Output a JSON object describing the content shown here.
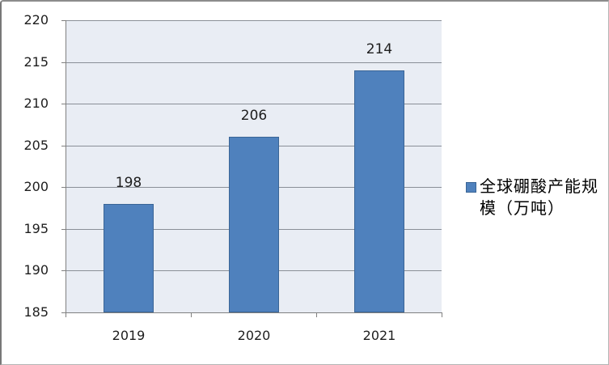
{
  "chart_data": {
    "type": "bar",
    "categories": [
      "2019",
      "2020",
      "2021"
    ],
    "values": [
      198,
      206,
      214
    ],
    "data_labels": [
      "198",
      "206",
      "214"
    ],
    "series": [
      {
        "name": "全球硼酸产能规模（万吨）",
        "values": [
          198,
          206,
          214
        ]
      }
    ],
    "title": "",
    "xlabel": "",
    "ylabel": "",
    "ylim": [
      185,
      220
    ],
    "yticks": [
      185,
      190,
      195,
      200,
      205,
      210,
      215,
      220
    ],
    "grid": true,
    "legend_position": "right"
  },
  "legend": {
    "label": "全球硼酸产能规模（万吨）"
  },
  "colors": {
    "bar_fill": "#4F81BD",
    "bar_border": "#3A6596",
    "plot_bg": "#E9EDF4",
    "gridline": "#8A8F97",
    "axis": "#808080",
    "text": "#1e1e1e",
    "frame_border": "#8c8c8c"
  }
}
